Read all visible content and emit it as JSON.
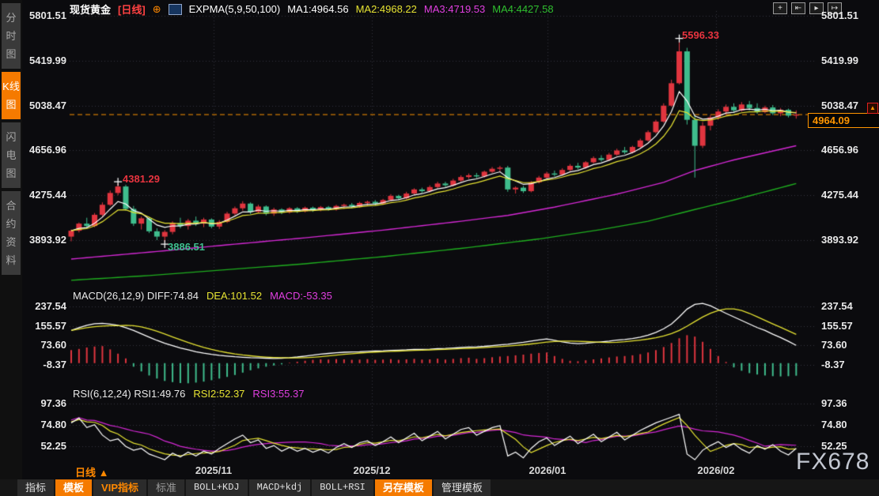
{
  "header": {
    "symbol": "现货黄金",
    "period_tag": "[日线]",
    "plus_icon": "⊕",
    "indicator_title": "EXPMA(5,9,50,100)",
    "ma1": "MA1:4964.56",
    "ma2": "MA2:4968.22",
    "ma3": "MA3:4719.53",
    "ma4": "MA4:4427.58",
    "toolbar_icons": [
      "+",
      "⇤",
      "▸",
      "↦"
    ]
  },
  "sidebar": {
    "tabs": [
      {
        "label": "分时图",
        "active": false
      },
      {
        "label": "K线图",
        "active": true
      },
      {
        "label": "闪电图",
        "active": false
      },
      {
        "label": "合约资料",
        "active": false
      }
    ]
  },
  "axes": {
    "price_labels": [
      "5801.51",
      "5419.99",
      "5038.47",
      "4656.96",
      "4275.44",
      "3893.92"
    ],
    "macd_labels": [
      "237.54",
      "155.57",
      "73.60",
      "-8.37"
    ],
    "rsi_labels": [
      "97.36",
      "74.80",
      "52.25"
    ]
  },
  "macd_row": {
    "title": "MACD(26,12,9) DIFF:74.84",
    "dea": "DEA:101.52",
    "macd": "MACD:-53.35"
  },
  "rsi_row": {
    "title": "RSI(6,12,24) RSI1:49.76",
    "rsi2": "RSI2:52.37",
    "rsi3": "RSI3:55.37"
  },
  "annotations": {
    "high1": "4381.29",
    "low1": "3886.51",
    "high2": "5596.33",
    "last_price": "4964.09"
  },
  "time_axis": {
    "period_label": "日线 ▲",
    "dates": [
      "2025/11",
      "2025/12",
      "2026/01",
      "2026/02"
    ]
  },
  "watermark": "FX678",
  "bottom_toolbar": [
    {
      "label": "指标",
      "style": "plain"
    },
    {
      "label": "模板",
      "style": "active"
    },
    {
      "label": "VIP指标",
      "style": "vip"
    },
    {
      "label": "标准",
      "style": "dim"
    },
    {
      "label": "BOLL+KDJ",
      "style": "mono"
    },
    {
      "label": "MACD+kdj",
      "style": "mono"
    },
    {
      "label": "BOLL+RSI",
      "style": "mono"
    },
    {
      "label": "另存模板",
      "style": "active"
    },
    {
      "label": "管理模板",
      "style": "plain"
    }
  ],
  "colors": {
    "up": "#e0353f",
    "down": "#3fbd8d",
    "ma1": "#ffffff",
    "ma2": "#e6e332",
    "ma3": "#d428d4",
    "ma4": "#1fae1f",
    "price_line": "#ff9500",
    "grid": "#34353e"
  },
  "chart_data": {
    "type": "candlestick",
    "title": "现货黄金 日线",
    "y_axis_values": [
      5801.51,
      5419.99,
      5038.47,
      4656.96,
      4275.44,
      3893.92
    ],
    "macd_axis_values": [
      237.54,
      155.57,
      73.6,
      -8.37
    ],
    "rsi_axis_values": [
      97.36,
      74.8,
      52.25
    ],
    "last_price": 4964.09,
    "high_annotation_1": {
      "index": 6,
      "value": 4381.29
    },
    "low_annotation_1": {
      "index": 12,
      "value": 3886.51
    },
    "high_annotation_2": {
      "index": 78,
      "value": 5596.33
    },
    "month_gridline_indices": [
      18.3,
      38.6,
      61.1,
      82.7
    ],
    "candles": [
      [
        3930,
        3990,
        3890,
        3980
      ],
      [
        3980,
        4050,
        3965,
        4040
      ],
      [
        4040,
        4090,
        4000,
        4020
      ],
      [
        4020,
        4130,
        4010,
        4115
      ],
      [
        4115,
        4220,
        4100,
        4200
      ],
      [
        4200,
        4320,
        4190,
        4300
      ],
      [
        4300,
        4381,
        4280,
        4355
      ],
      [
        4355,
        4370,
        4150,
        4165
      ],
      [
        4165,
        4190,
        4020,
        4040
      ],
      [
        4040,
        4100,
        3990,
        4085
      ],
      [
        4085,
        4095,
        3960,
        3975
      ],
      [
        3975,
        4000,
        3900,
        3930
      ],
      [
        3930,
        3985,
        3886,
        3970
      ],
      [
        3970,
        4060,
        3950,
        4045
      ],
      [
        4045,
        4090,
        4000,
        4020
      ],
      [
        4020,
        4080,
        3990,
        4065
      ],
      [
        4065,
        4100,
        4020,
        4040
      ],
      [
        4040,
        4090,
        4010,
        4075
      ],
      [
        4075,
        4085,
        4000,
        4015
      ],
      [
        4015,
        4070,
        3995,
        4055
      ],
      [
        4055,
        4140,
        4045,
        4125
      ],
      [
        4125,
        4185,
        4110,
        4170
      ],
      [
        4170,
        4230,
        4150,
        4210
      ],
      [
        4210,
        4220,
        4120,
        4140
      ],
      [
        4140,
        4200,
        4130,
        4185
      ],
      [
        4185,
        4195,
        4110,
        4125
      ],
      [
        4125,
        4175,
        4105,
        4160
      ],
      [
        4160,
        4170,
        4120,
        4135
      ],
      [
        4135,
        4180,
        4125,
        4170
      ],
      [
        4170,
        4180,
        4130,
        4145
      ],
      [
        4145,
        4185,
        4135,
        4175
      ],
      [
        4175,
        4185,
        4140,
        4155
      ],
      [
        4155,
        4190,
        4145,
        4180
      ],
      [
        4180,
        4190,
        4150,
        4160
      ],
      [
        4160,
        4200,
        4150,
        4190
      ],
      [
        4190,
        4210,
        4165,
        4200
      ],
      [
        4200,
        4215,
        4170,
        4185
      ],
      [
        4185,
        4225,
        4175,
        4215
      ],
      [
        4215,
        4235,
        4190,
        4225
      ],
      [
        4225,
        4240,
        4195,
        4210
      ],
      [
        4210,
        4250,
        4200,
        4240
      ],
      [
        4240,
        4290,
        4230,
        4275
      ],
      [
        4275,
        4285,
        4240,
        4255
      ],
      [
        4255,
        4310,
        4245,
        4295
      ],
      [
        4295,
        4340,
        4285,
        4330
      ],
      [
        4330,
        4345,
        4300,
        4315
      ],
      [
        4315,
        4365,
        4305,
        4350
      ],
      [
        4350,
        4395,
        4340,
        4380
      ],
      [
        4380,
        4395,
        4350,
        4365
      ],
      [
        4365,
        4420,
        4355,
        4405
      ],
      [
        4405,
        4450,
        4395,
        4435
      ],
      [
        4435,
        4465,
        4420,
        4450
      ],
      [
        4450,
        4470,
        4425,
        4440
      ],
      [
        4440,
        4490,
        4430,
        4480
      ],
      [
        4480,
        4520,
        4470,
        4505
      ],
      [
        4505,
        4530,
        4480,
        4515
      ],
      [
        4515,
        4530,
        4310,
        4330
      ],
      [
        4330,
        4355,
        4295,
        4345
      ],
      [
        4345,
        4360,
        4300,
        4315
      ],
      [
        4315,
        4400,
        4305,
        4390
      ],
      [
        4390,
        4445,
        4380,
        4430
      ],
      [
        4430,
        4480,
        4420,
        4465
      ],
      [
        4465,
        4490,
        4440,
        4455
      ],
      [
        4455,
        4510,
        4445,
        4495
      ],
      [
        4495,
        4545,
        4485,
        4530
      ],
      [
        4530,
        4555,
        4500,
        4515
      ],
      [
        4515,
        4570,
        4505,
        4560
      ],
      [
        4560,
        4610,
        4550,
        4595
      ],
      [
        4595,
        4620,
        4565,
        4580
      ],
      [
        4580,
        4640,
        4570,
        4625
      ],
      [
        4625,
        4675,
        4615,
        4660
      ],
      [
        4660,
        4690,
        4630,
        4645
      ],
      [
        4645,
        4700,
        4635,
        4690
      ],
      [
        4690,
        4760,
        4680,
        4745
      ],
      [
        4745,
        4830,
        4735,
        4815
      ],
      [
        4815,
        4920,
        4805,
        4905
      ],
      [
        4905,
        5060,
        4895,
        5040
      ],
      [
        5040,
        5260,
        5030,
        5230
      ],
      [
        5230,
        5596,
        5220,
        5500
      ],
      [
        5500,
        5530,
        4880,
        4920
      ],
      [
        4920,
        4960,
        4430,
        4700
      ],
      [
        4700,
        4900,
        4680,
        4870
      ],
      [
        4870,
        4960,
        4830,
        4940
      ],
      [
        4940,
        5010,
        4920,
        4990
      ],
      [
        4990,
        5050,
        4960,
        5030
      ],
      [
        5030,
        5060,
        4980,
        5000
      ],
      [
        5000,
        5070,
        4990,
        5050
      ],
      [
        5050,
        5080,
        5000,
        5020
      ],
      [
        5020,
        5060,
        4970,
        4985
      ],
      [
        4985,
        5040,
        4975,
        5025
      ],
      [
        5025,
        5045,
        4960,
        4975
      ],
      [
        4975,
        5020,
        4950,
        5005
      ],
      [
        5005,
        5015,
        4940,
        4955
      ],
      [
        4955,
        5000,
        4930,
        4964
      ]
    ],
    "ma3_points": [
      [
        0,
        3740
      ],
      [
        6,
        3775
      ],
      [
        12,
        3810
      ],
      [
        20,
        3860
      ],
      [
        30,
        3920
      ],
      [
        40,
        3985
      ],
      [
        50,
        4060
      ],
      [
        56,
        4110
      ],
      [
        62,
        4180
      ],
      [
        70,
        4290
      ],
      [
        76,
        4390
      ],
      [
        80,
        4490
      ],
      [
        85,
        4580
      ],
      [
        89,
        4640
      ],
      [
        93,
        4700
      ]
    ],
    "ma4_points": [
      [
        0,
        3560
      ],
      [
        10,
        3600
      ],
      [
        20,
        3650
      ],
      [
        30,
        3700
      ],
      [
        40,
        3760
      ],
      [
        50,
        3830
      ],
      [
        60,
        3910
      ],
      [
        68,
        3990
      ],
      [
        74,
        4060
      ],
      [
        80,
        4160
      ],
      [
        85,
        4240
      ],
      [
        89,
        4310
      ],
      [
        93,
        4380
      ]
    ],
    "macd": {
      "diff": [
        138,
        150,
        160,
        166,
        168,
        165,
        160,
        150,
        138,
        124,
        110,
        96,
        84,
        74,
        64,
        56,
        48,
        42,
        37,
        33,
        30,
        27,
        25,
        23,
        22,
        21,
        20,
        21,
        23,
        26,
        30,
        34,
        38,
        41,
        44,
        46,
        47,
        48,
        50,
        51,
        52,
        54,
        55,
        56,
        58,
        58,
        59,
        61,
        62,
        64,
        66,
        68,
        69,
        71,
        74,
        77,
        80,
        84,
        88,
        93,
        98,
        102,
        96,
        90,
        85,
        82,
        84,
        87,
        90,
        93,
        97,
        100,
        104,
        110,
        118,
        130,
        145,
        165,
        195,
        228,
        248,
        252,
        242,
        226,
        210,
        195,
        180,
        165,
        150,
        138,
        122,
        108,
        92,
        75
      ],
      "hist": [
        55,
        60,
        66,
        70,
        72,
        58,
        40,
        20,
        -15,
        -35,
        -52,
        -65,
        -75,
        -80,
        -84,
        -85,
        -82,
        -78,
        -72,
        -65,
        -58,
        -50,
        -40,
        -30,
        -22,
        -15,
        -10,
        -5,
        2,
        6,
        10,
        14,
        16,
        15,
        17,
        16,
        14,
        15,
        17,
        14,
        15,
        17,
        14,
        16,
        18,
        15,
        16,
        19,
        15,
        18,
        21,
        23,
        18,
        21,
        25,
        28,
        30,
        33,
        36,
        40,
        43,
        45,
        30,
        18,
        10,
        8,
        12,
        16,
        20,
        24,
        28,
        30,
        33,
        38,
        45,
        55,
        68,
        85,
        105,
        118,
        112,
        90,
        60,
        30,
        5,
        -18,
        -32,
        -42,
        -48,
        -52,
        -55,
        -56,
        -55,
        -53
      ]
    },
    "rsi1": [
      77,
      82,
      72,
      75,
      64,
      58,
      60,
      52,
      48,
      50,
      44,
      41,
      38,
      45,
      41,
      46,
      42,
      47,
      44,
      50,
      55,
      60,
      64,
      56,
      59,
      50,
      53,
      47,
      51,
      47,
      50,
      46,
      49,
      45,
      51,
      55,
      51,
      56,
      58,
      53,
      57,
      62,
      56,
      61,
      66,
      58,
      63,
      68,
      60,
      65,
      70,
      72,
      64,
      68,
      72,
      74,
      42,
      46,
      40,
      50,
      57,
      61,
      53,
      58,
      63,
      55,
      60,
      65,
      57,
      62,
      67,
      59,
      64,
      69,
      73,
      77,
      80,
      83,
      86,
      44,
      38,
      48,
      53,
      57,
      51,
      55,
      49,
      45,
      53,
      49,
      54,
      47,
      43,
      50
    ]
  }
}
